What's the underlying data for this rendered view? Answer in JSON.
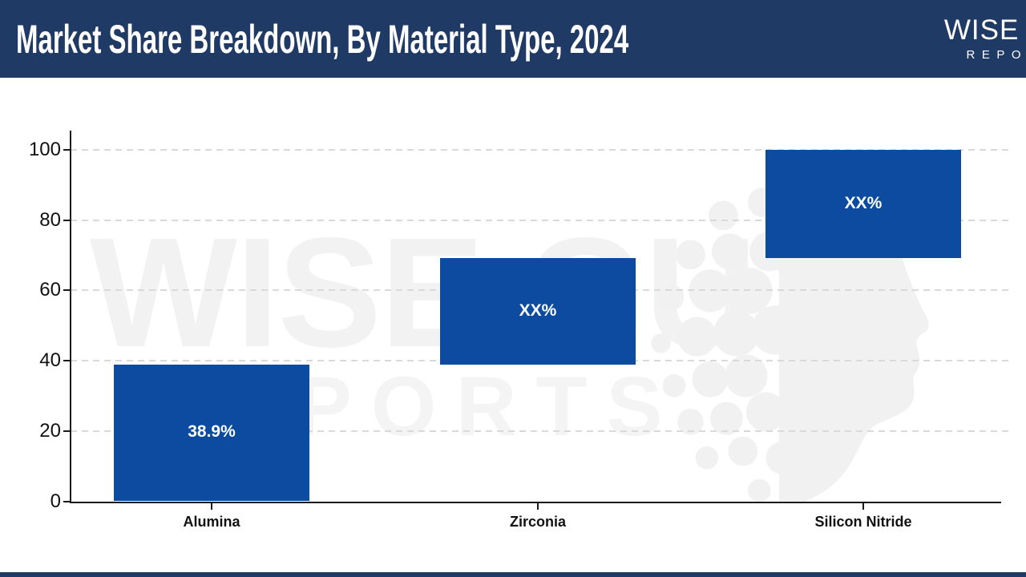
{
  "header": {
    "title": "Market Share Breakdown, By Material Type, 2024"
  },
  "logo": {
    "main": "WISE GUY",
    "sub": "REPORTS"
  },
  "watermark": {
    "line1": "WISE GUY",
    "line2": "REPORTS"
  },
  "colors": {
    "header_bg": "#203a66",
    "footer_bg": "#203a66",
    "bar_blue": "#0c4ba0",
    "gridline": "#d9d9d9",
    "axis": "#1a1a1a",
    "watermark_gray": "#f2f2f2"
  },
  "chart_data": {
    "type": "bar",
    "subtype": "cumulative-waterfall",
    "title": "Market Share Breakdown, By Material Type, 2024",
    "categories": [
      "Alumina",
      "Zirconia",
      "Silicon Nitride"
    ],
    "segments": [
      {
        "category": "Alumina",
        "start": 0,
        "end": 38.9,
        "label": "38.9%"
      },
      {
        "category": "Zirconia",
        "start": 38.9,
        "end": 69.1,
        "label": "XX%"
      },
      {
        "category": "Silicon Nitride",
        "start": 69.1,
        "end": 100,
        "label": "XX%"
      }
    ],
    "ylim": [
      0,
      100
    ],
    "yticks": [
      0,
      20,
      40,
      60,
      80,
      100
    ],
    "xlabel": "",
    "ylabel": "",
    "grid": {
      "horizontal": true,
      "style": "dashed",
      "color": "#d9d9d9"
    },
    "legend": null,
    "bar_color": "#0c4ba0",
    "bar_label_color": "#ffffff"
  }
}
